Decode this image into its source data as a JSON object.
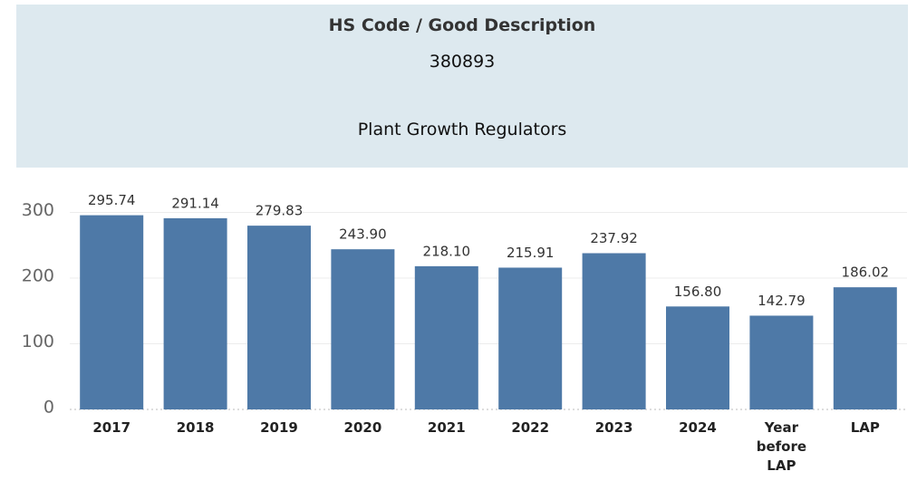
{
  "header": {
    "title": "HS Code / Good Description",
    "code": "380893",
    "description": "Plant Growth Regulators"
  },
  "chart_data": {
    "type": "bar",
    "categories": [
      "2017",
      "2018",
      "2019",
      "2020",
      "2021",
      "2022",
      "2023",
      "2024",
      "Year before LAP",
      "LAP"
    ],
    "values": [
      295.74,
      291.14,
      279.83,
      243.9,
      218.1,
      215.91,
      237.92,
      156.8,
      142.79,
      186.02
    ],
    "value_labels": [
      "295.74",
      "291.14",
      "279.83",
      "243.90",
      "218.10",
      "215.91",
      "237.92",
      "156.80",
      "142.79",
      "186.02"
    ],
    "color": "#4e79a7",
    "ylim": [
      0,
      300
    ],
    "yticks": [
      0,
      100,
      200,
      300
    ],
    "grid": true
  }
}
